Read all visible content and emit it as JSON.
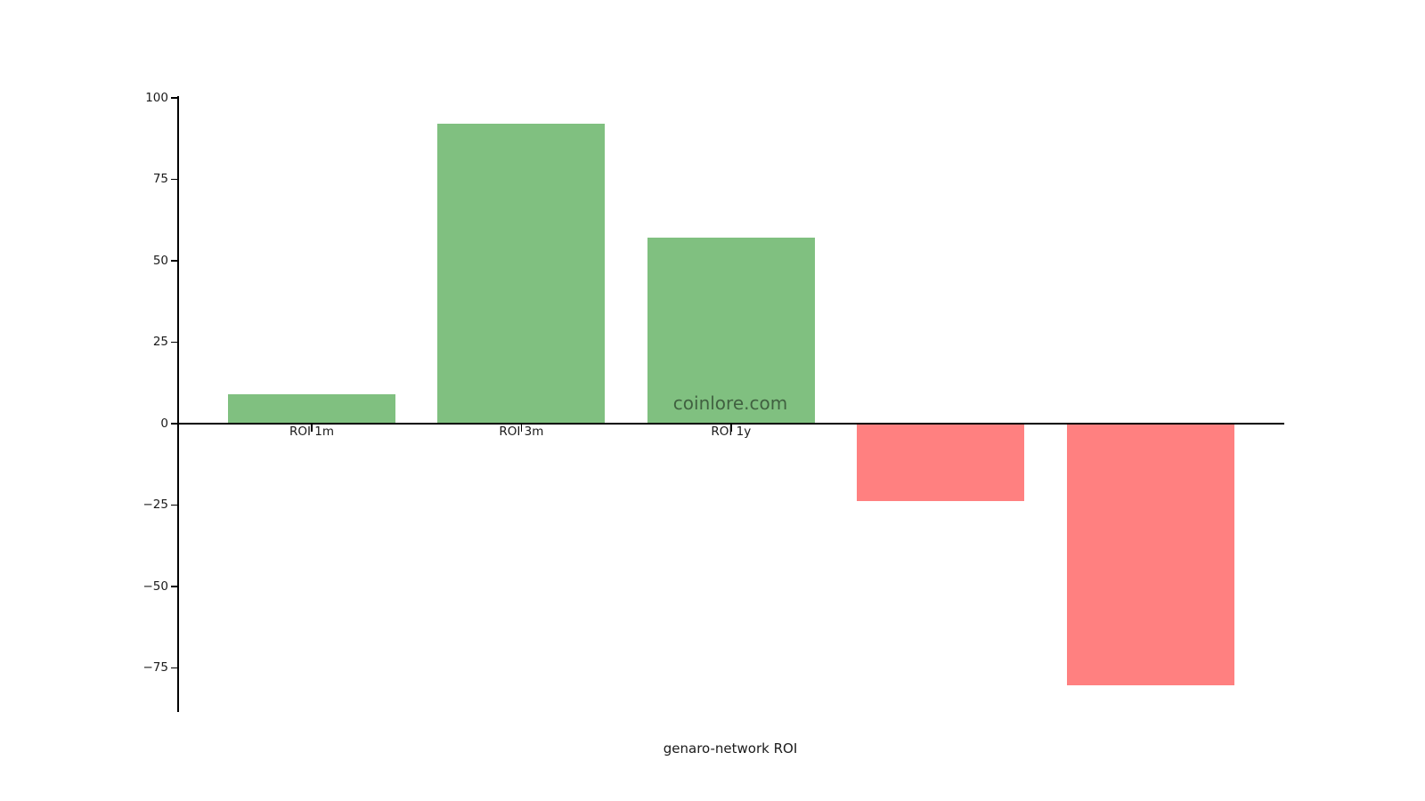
{
  "chart_data": {
    "type": "bar",
    "title": "genaro-network ROI",
    "watermark": "coinlore.com",
    "categories": [
      "ROI 1m",
      "ROI 3m",
      "ROI 1y",
      "",
      ""
    ],
    "values": [
      9,
      92,
      57,
      -23.5,
      -80
    ],
    "y_ticks": [
      100,
      75,
      50,
      25,
      0,
      -25,
      -50,
      -75
    ],
    "y_tick_labels": [
      "100",
      "75",
      "50",
      "25",
      "0",
      "−25",
      "−50",
      "−75"
    ],
    "ylim": [
      -88.6,
      100.6
    ],
    "xlabel": "",
    "ylabel": "",
    "grid": false,
    "legend": false,
    "bar_width_fraction": 0.8,
    "positive_color": "#80c080",
    "negative_color": "#ff8080",
    "axis_color": "#000000",
    "text_color": "#1a1a1a",
    "watermark_color": "rgba(0, 0, 0, 0.5)"
  }
}
